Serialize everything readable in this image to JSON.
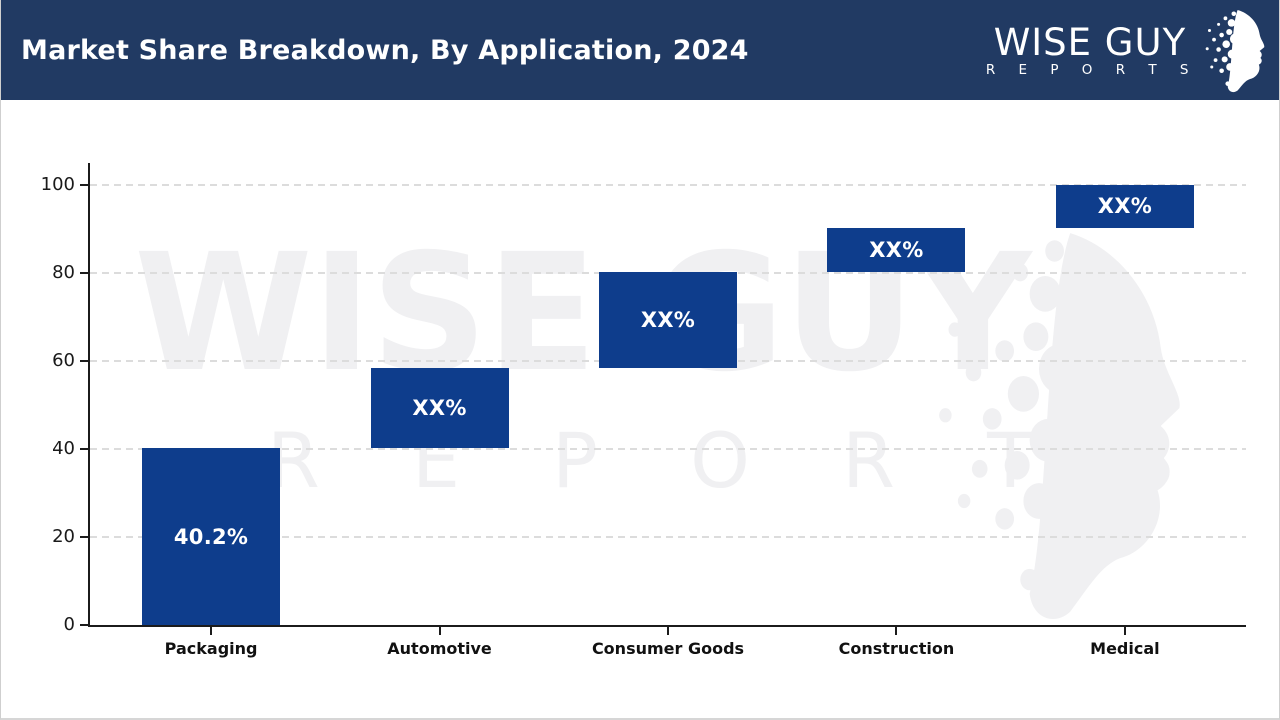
{
  "header": {
    "title": "Market Share Breakdown, By Application, 2024",
    "logo_line1": "WISE GUY",
    "logo_line2": "R E P O R T S"
  },
  "watermark": {
    "line1": "WISE GUY",
    "line2": "R E P O R T S"
  },
  "colors": {
    "header_bg": "#213A63",
    "bar": "#0E3D8C",
    "grid": "#DCDCDC",
    "axis": "#1B1B1B",
    "bar_label": "#FFFFFF",
    "watermark": "#F0F0F2"
  },
  "chart_data": {
    "type": "bar",
    "subtype": "waterfall",
    "title": "Market Share Breakdown, By Application, 2024",
    "categories": [
      "Packaging",
      "Automotive",
      "Consumer Goods",
      "Construction",
      "Medical"
    ],
    "segments": [
      {
        "category": "Packaging",
        "start": 0,
        "end": 40.2,
        "label": "40.2%"
      },
      {
        "category": "Automotive",
        "start": 40.2,
        "end": 58.4,
        "label": "XX%"
      },
      {
        "category": "Consumer Goods",
        "start": 58.4,
        "end": 80.2,
        "label": "XX%"
      },
      {
        "category": "Construction",
        "start": 80.2,
        "end": 90.2,
        "label": "XX%"
      },
      {
        "category": "Medical",
        "start": 90.2,
        "end": 100.1,
        "label": "XX%"
      }
    ],
    "yticks": [
      0,
      20,
      40,
      60,
      80,
      100
    ],
    "ylim": [
      0,
      105
    ],
    "xlabel": "",
    "ylabel": "",
    "grid": "horizontal-dashed",
    "legend": "none"
  }
}
